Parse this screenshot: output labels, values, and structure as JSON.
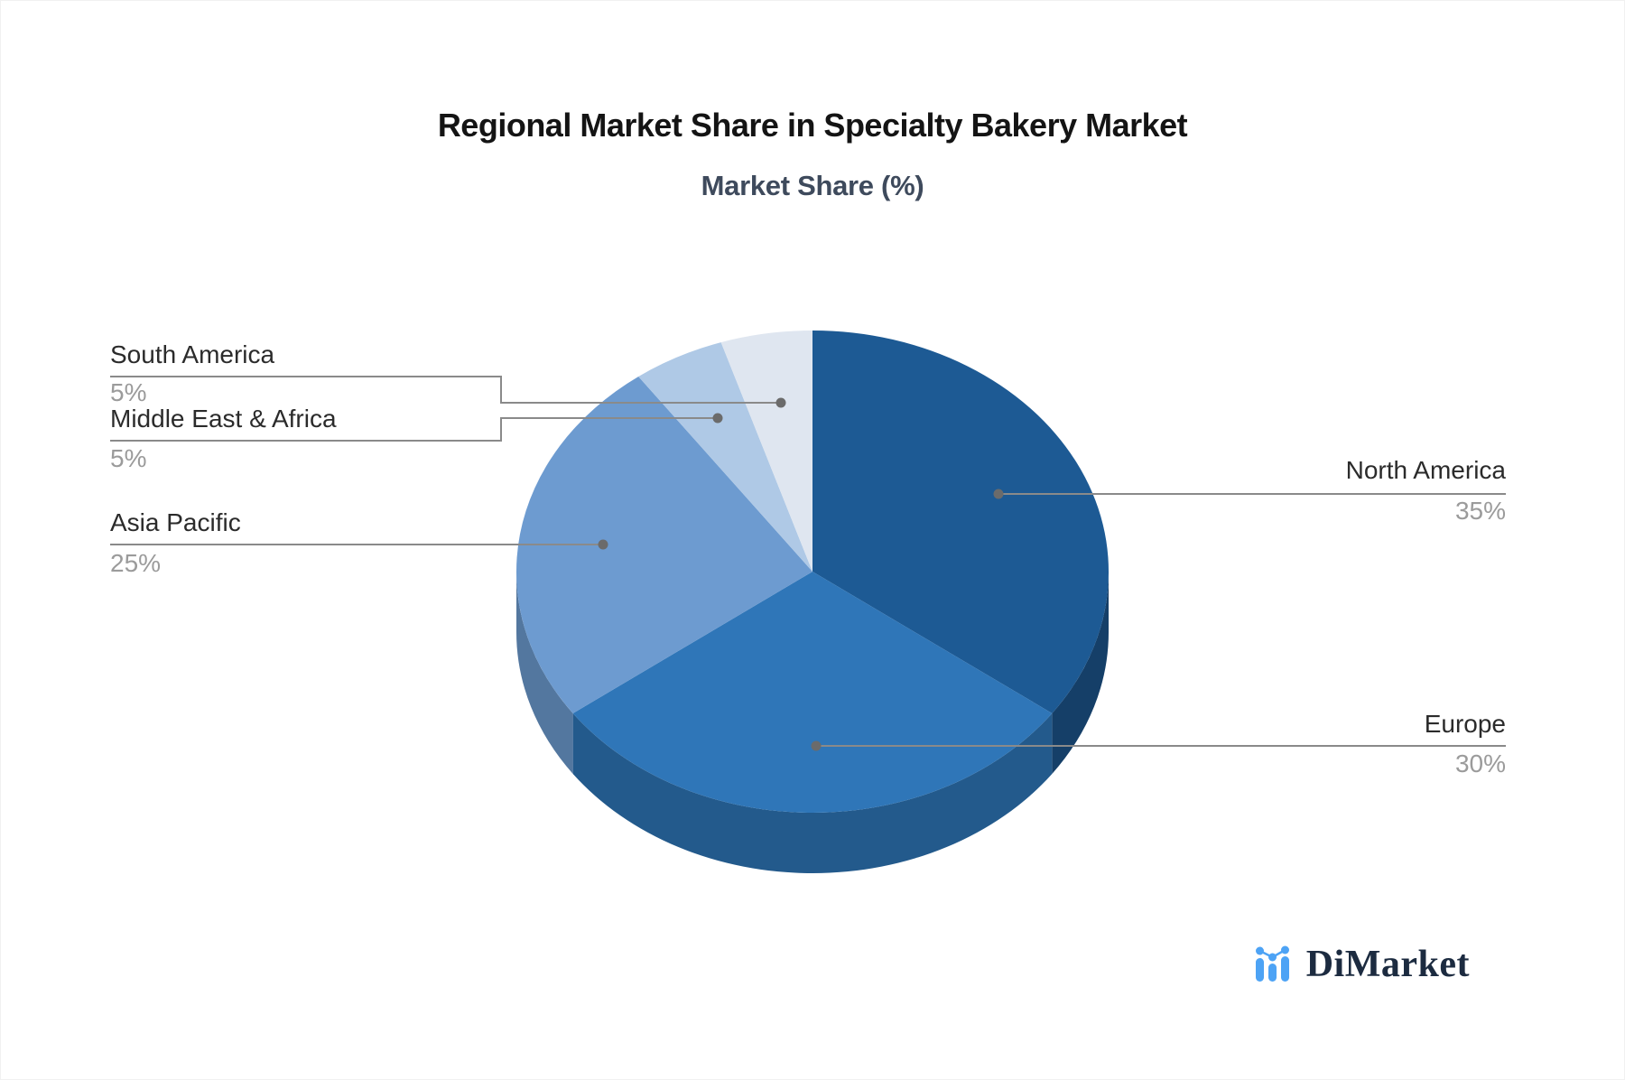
{
  "chart_data": {
    "type": "pie",
    "style": "3d-pie",
    "title": "Regional Market Share in Specialty Bakery Market",
    "subtitle": "Market Share (%)",
    "unit": "%",
    "legend_position": "none",
    "labels_layout": "outside-with-connectors",
    "slices": [
      {
        "label": "North America",
        "value": 35,
        "display": "35%",
        "color": "#1d5a94",
        "side_color": "#153f68",
        "label_side": "right"
      },
      {
        "label": "Europe",
        "value": 30,
        "display": "30%",
        "color": "#2f76b8",
        "side_color": "#235a8c",
        "label_side": "right"
      },
      {
        "label": "Asia Pacific",
        "value": 25,
        "display": "25%",
        "color": "#6d9bd0",
        "side_color": "#53779f",
        "label_side": "left"
      },
      {
        "label": "Middle East & Africa",
        "value": 5,
        "display": "5%",
        "color": "#afc9e6",
        "side_color": "#8396ab",
        "label_side": "left"
      },
      {
        "label": "South America",
        "value": 5,
        "display": "5%",
        "color": "#dfe6f0",
        "side_color": "#a8adb5",
        "label_side": "left"
      }
    ],
    "start_angle_deg": -90,
    "direction": "clockwise",
    "connector_color": "#8a8a8a",
    "dot_color": "#6b6b6b"
  },
  "branding": {
    "text": "DiMarket",
    "icon": "bar-line-chart-icon",
    "icon_color": "#4da3f5",
    "text_color": "#1c2b40"
  }
}
